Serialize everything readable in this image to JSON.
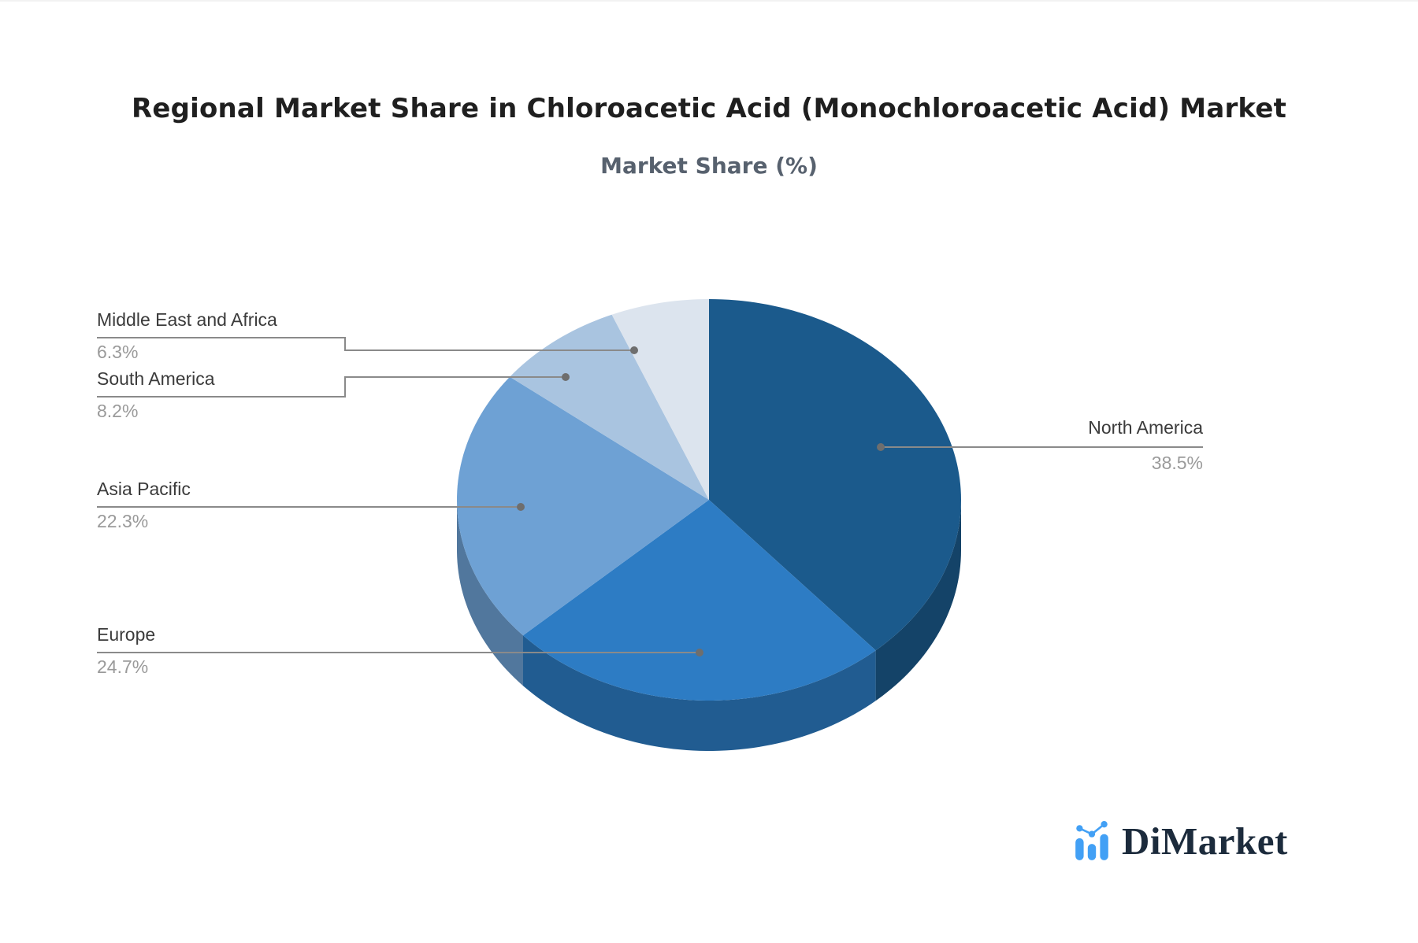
{
  "page": {
    "title": "Regional Market Share in Chloroacetic Acid (Monochloroacetic Acid) Market",
    "subtitle": "Market Share (%)"
  },
  "chart_data": {
    "type": "pie",
    "style": "3d",
    "title": "Regional Market Share in Chloroacetic Acid (Monochloroacetic Acid) Market",
    "subtitle": "Market Share (%)",
    "unit": "%",
    "start_angle_deg": 0,
    "direction": "clockwise",
    "legend_position": "callout-labels",
    "slices": [
      {
        "label": "North America",
        "value": 38.5,
        "display": "38.5%",
        "color": "#1b5a8c"
      },
      {
        "label": "Europe",
        "value": 24.7,
        "display": "24.7%",
        "color": "#2d7cc4"
      },
      {
        "label": "Asia Pacific",
        "value": 22.3,
        "display": "22.3%",
        "color": "#6ea1d4"
      },
      {
        "label": "South America",
        "value": 8.2,
        "display": "8.2%",
        "color": "#a9c4e0"
      },
      {
        "label": "Middle East and Africa",
        "value": 6.3,
        "display": "6.3%",
        "color": "#dce4ee"
      }
    ]
  },
  "branding": {
    "logo_text": "DiMarket",
    "logo_icon": "bar-chart-icon",
    "logo_text_color": "#1c2b3c",
    "logo_accent_color": "#42a0f5"
  },
  "colors": {
    "leader_line": "#8a8a8a",
    "leader_dot": "#6e6e6e",
    "label_text": "#3b3b3b",
    "value_text": "#9a9a9a"
  }
}
